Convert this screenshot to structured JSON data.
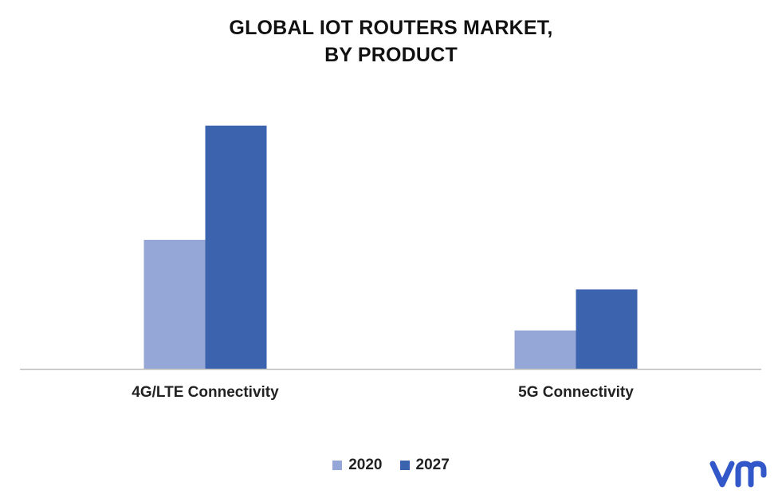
{
  "chart_data": {
    "type": "bar",
    "title": "GLOBAL IOT ROUTERS MARKET,",
    "subtitle": "BY PRODUCT",
    "categories": [
      "4G/LTE Connectivity",
      "5G Connectivity"
    ],
    "series": [
      {
        "name": "2020",
        "values": [
          5.2,
          1.55
        ],
        "color": "#94a7d6"
      },
      {
        "name": "2027",
        "values": [
          9.8,
          3.2
        ],
        "color": "#3c63ad"
      }
    ],
    "ylim": [
      0,
      10
    ],
    "grid": false,
    "legend_position": "bottom"
  },
  "logo": {
    "name": "vmr-logo-icon",
    "color": "#3157c9"
  }
}
